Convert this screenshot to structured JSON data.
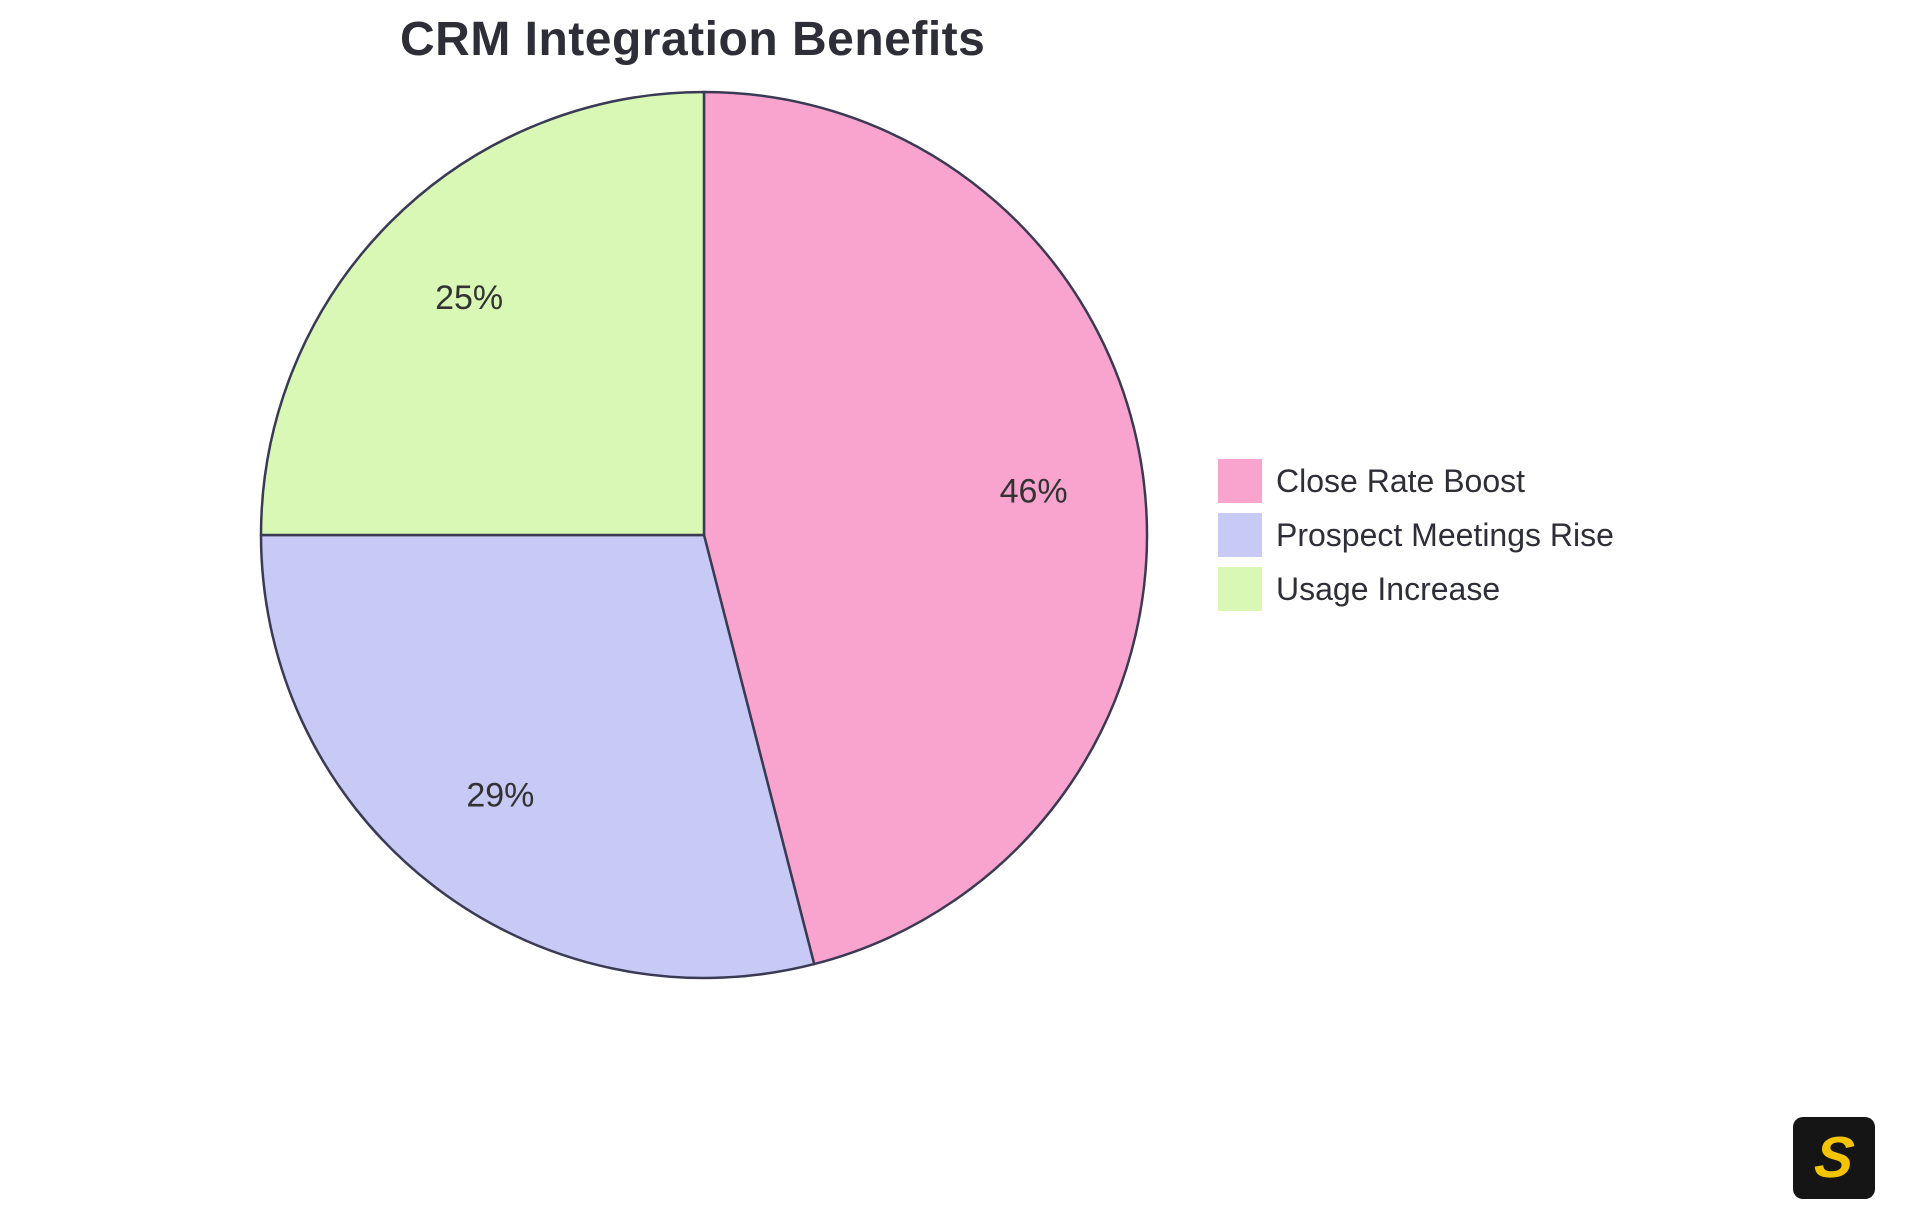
{
  "chart_data": {
    "type": "pie",
    "title": "CRM Integration Benefits",
    "labels": [
      "Close Rate Boost",
      "Prospect Meetings Rise",
      "Usage Increase"
    ],
    "values": [
      46,
      29,
      25
    ],
    "slice_labels": [
      "46%",
      "29%",
      "25%"
    ],
    "colors": [
      "#F9A4CE",
      "#C6CAF4",
      "#D9F8B5"
    ],
    "stroke_color": "#3A3A55",
    "start_angle_deg": 0,
    "direction": "clockwise",
    "legend_position": "right",
    "label_radius_ratio": 0.75
  },
  "logo": {
    "letter": "S",
    "background": "#151515",
    "foreground": "#F5C400"
  }
}
